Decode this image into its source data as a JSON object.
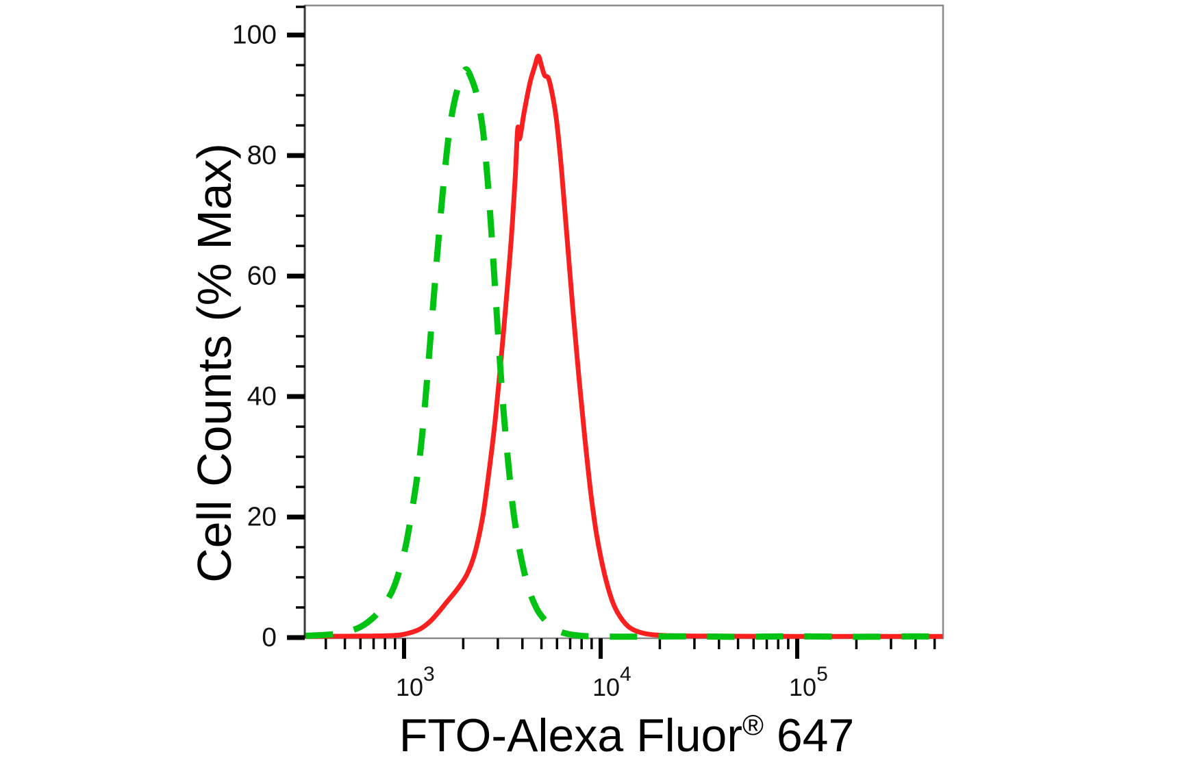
{
  "figure": {
    "background_color": "#ffffff",
    "box_color": "#8a8a8a",
    "axis_line_color": "#3a3a3a",
    "tick_color": "#000000",
    "label_color": "#111111"
  },
  "chart_data": {
    "type": "line",
    "subtype": "flow-cytometry-overlay-histogram",
    "title": "",
    "xlabel_main": "FTO-Alexa Fluor",
    "xlabel_reg": "®",
    "xlabel_suffix": " 647",
    "ylabel": "Cell Counts (% Max)",
    "grid": false,
    "legend": "none",
    "x_axis": {
      "scale": "log10",
      "lim_log10": [
        2.495,
        5.742
      ],
      "major_ticks_values": [
        1000,
        10000,
        100000
      ],
      "major_tick_labels": [
        {
          "base": "10",
          "exp": "3"
        },
        {
          "base": "10",
          "exp": "4"
        },
        {
          "base": "10",
          "exp": "5"
        }
      ],
      "minor_tick_multipliers": [
        2,
        3,
        4,
        5,
        6,
        7,
        8,
        9
      ]
    },
    "y_axis": {
      "lim": [
        0,
        104.9
      ],
      "major_ticks": [
        0,
        20,
        40,
        60,
        80,
        100
      ],
      "major_tick_labels": [
        "0",
        "20",
        "40",
        "60",
        "80",
        "100"
      ],
      "minor_tick_step": 5
    },
    "series": [
      {
        "name": "red-solid-curve",
        "color": "#fb2020",
        "style": "solid",
        "stroke_width": 7,
        "points_log10x_pct": [
          [
            2.5,
            0.2
          ],
          [
            2.8,
            0.25
          ],
          [
            2.95,
            0.35
          ],
          [
            3.02,
            0.7
          ],
          [
            3.08,
            1.4
          ],
          [
            3.13,
            2.6
          ],
          [
            3.17,
            4.0
          ],
          [
            3.22,
            6.0
          ],
          [
            3.27,
            8.0
          ],
          [
            3.32,
            10.5
          ],
          [
            3.36,
            14
          ],
          [
            3.4,
            20
          ],
          [
            3.43,
            27
          ],
          [
            3.46,
            35
          ],
          [
            3.49,
            45
          ],
          [
            3.52,
            56
          ],
          [
            3.545,
            66
          ],
          [
            3.565,
            76
          ],
          [
            3.578,
            84.5
          ],
          [
            3.588,
            82.8
          ],
          [
            3.61,
            87
          ],
          [
            3.64,
            92
          ],
          [
            3.665,
            94.8
          ],
          [
            3.683,
            96.5
          ],
          [
            3.7,
            94.8
          ],
          [
            3.715,
            93.3
          ],
          [
            3.735,
            92.8
          ],
          [
            3.755,
            90
          ],
          [
            3.775,
            86
          ],
          [
            3.8,
            78
          ],
          [
            3.83,
            66
          ],
          [
            3.86,
            54
          ],
          [
            3.89,
            43
          ],
          [
            3.92,
            33
          ],
          [
            3.95,
            24
          ],
          [
            3.98,
            17
          ],
          [
            4.02,
            10.5
          ],
          [
            4.06,
            6
          ],
          [
            4.1,
            3.4
          ],
          [
            4.15,
            1.6
          ],
          [
            4.22,
            0.7
          ],
          [
            4.32,
            0.35
          ],
          [
            4.5,
            0.25
          ],
          [
            5.0,
            0.2
          ],
          [
            5.4,
            0.2
          ],
          [
            5.74,
            0.2
          ]
        ]
      },
      {
        "name": "green-dashed-curve",
        "color": "#00c213",
        "style": "dashed",
        "dash_pattern": [
          40,
          31
        ],
        "stroke_width": 9,
        "points_log10x_pct": [
          [
            2.5,
            0.3
          ],
          [
            2.62,
            0.5
          ],
          [
            2.7,
            0.9
          ],
          [
            2.78,
            1.8
          ],
          [
            2.85,
            3.5
          ],
          [
            2.9,
            5.5
          ],
          [
            2.95,
            8.5
          ],
          [
            3.0,
            14
          ],
          [
            3.04,
            21
          ],
          [
            3.08,
            30
          ],
          [
            3.11,
            40
          ],
          [
            3.14,
            52
          ],
          [
            3.17,
            64
          ],
          [
            3.2,
            75
          ],
          [
            3.23,
            84
          ],
          [
            3.26,
            89.5
          ],
          [
            3.29,
            92.8
          ],
          [
            3.315,
            94.3
          ],
          [
            3.34,
            93
          ],
          [
            3.37,
            90
          ],
          [
            3.4,
            84.5
          ],
          [
            3.425,
            76
          ],
          [
            3.445,
            67
          ],
          [
            3.465,
            57
          ],
          [
            3.485,
            47
          ],
          [
            3.505,
            38
          ],
          [
            3.53,
            29
          ],
          [
            3.56,
            20
          ],
          [
            3.6,
            12.5
          ],
          [
            3.64,
            7.5
          ],
          [
            3.68,
            4.5
          ],
          [
            3.72,
            2.8
          ],
          [
            3.76,
            1.6
          ],
          [
            3.81,
            0.8
          ],
          [
            3.87,
            0.4
          ],
          [
            3.95,
            0.2
          ],
          [
            4.1,
            0.15
          ],
          [
            4.4,
            0.2
          ],
          [
            4.7,
            0.12
          ],
          [
            5.0,
            0.2
          ],
          [
            5.3,
            0.12
          ],
          [
            5.6,
            0.2
          ],
          [
            5.73,
            0.15
          ]
        ]
      }
    ]
  }
}
